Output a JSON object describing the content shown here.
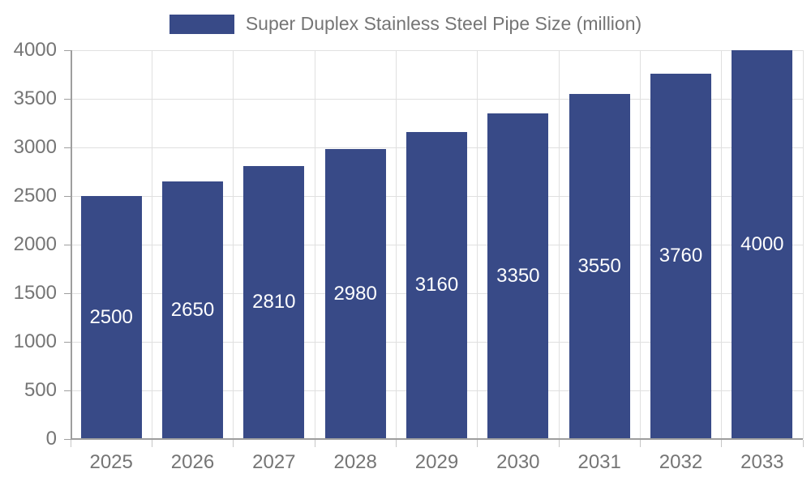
{
  "legend": {
    "label": "Super Duplex Stainless Steel Pipe Size (million)"
  },
  "colors": {
    "bar": "#384A87",
    "axis_line": "#9e9e9e",
    "grid_line": "#e0e0e0",
    "tick_text": "#757575",
    "data_label": "#ffffff",
    "background": "#ffffff"
  },
  "chart_data": {
    "type": "bar",
    "title": "Super Duplex Stainless Steel Pipe Size (million)",
    "categories": [
      "2025",
      "2026",
      "2027",
      "2028",
      "2029",
      "2030",
      "2031",
      "2032",
      "2033"
    ],
    "values": [
      2500,
      2650,
      2810,
      2980,
      3160,
      3350,
      3550,
      3760,
      4000
    ],
    "xlabel": "",
    "ylabel": "",
    "ylim": [
      0,
      4000
    ],
    "y_ticks": [
      0,
      500,
      1000,
      1500,
      2000,
      2500,
      3000,
      3500,
      4000
    ],
    "grid": true,
    "legend_position": "top",
    "data_labels": "inside-center"
  }
}
